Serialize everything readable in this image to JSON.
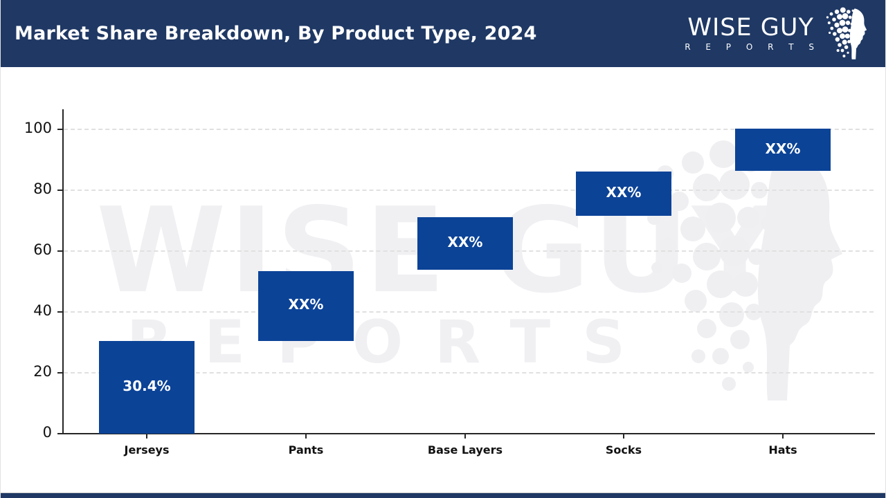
{
  "header": {
    "title": "Market Share Breakdown, By Product Type, 2024",
    "logo": {
      "line1": "WISE GUY",
      "line2": "R E P O R T S"
    }
  },
  "watermark": {
    "line1": "WISE GUY",
    "line2": "REPORTS"
  },
  "colors": {
    "header_bg": "#1f3864",
    "bar": "#0b4397",
    "grid": "#e0e0e0",
    "axis": "#262626",
    "bar_label": "#ffffff",
    "watermark": "#f0f0f3",
    "footer_bg": "#1f3864"
  },
  "chart_data": {
    "type": "bar",
    "subtype": "waterfall",
    "title": "Market Share Breakdown, By Product Type, 2024",
    "categories": [
      "Jerseys",
      "Pants",
      "Base Layers",
      "Socks",
      "Hats"
    ],
    "segments": [
      {
        "category": "Jerseys",
        "start": 0,
        "end": 30.4,
        "label": "30.4%"
      },
      {
        "category": "Pants",
        "start": 30.4,
        "end": 53.5,
        "label": "XX%"
      },
      {
        "category": "Base Layers",
        "start": 53.8,
        "end": 71.2,
        "label": "XX%"
      },
      {
        "category": "Socks",
        "start": 71.5,
        "end": 86.2,
        "label": "XX%"
      },
      {
        "category": "Hats",
        "start": 86.3,
        "end": 100.2,
        "label": "XX%"
      }
    ],
    "yticks": [
      0,
      20,
      40,
      60,
      80,
      100
    ],
    "ylim": [
      0,
      105
    ],
    "xlabel": "",
    "ylabel": "",
    "grid": "horizontal-dashed",
    "legend": "none",
    "bar_color": "#0b4397"
  }
}
